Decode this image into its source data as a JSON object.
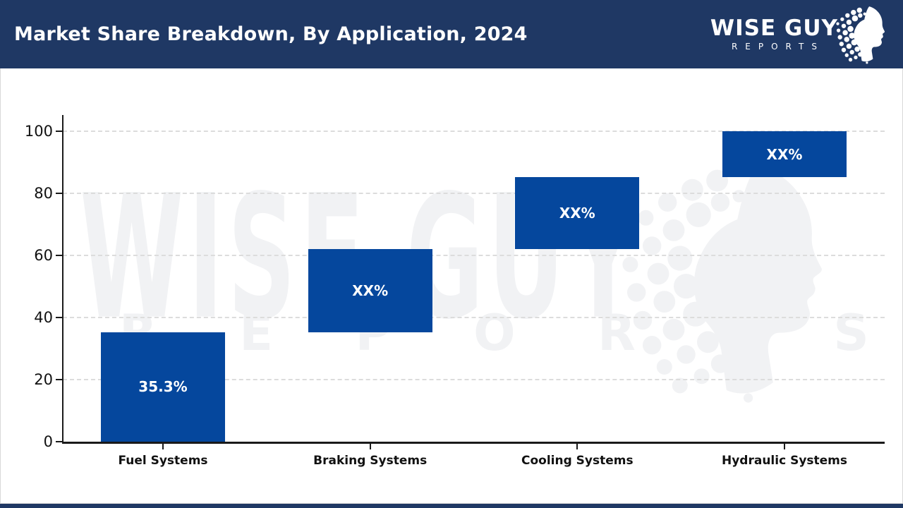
{
  "header": {
    "title": "Market Share Breakdown, By Application, 2024",
    "bg_color": "#1f3864",
    "logo": {
      "line1": "WISE GUY",
      "line2": "REPORTS"
    }
  },
  "watermark": {
    "line1": "WISE GUY",
    "line2": "R E P O R T S",
    "color": "#f1f2f4"
  },
  "chart_data": {
    "type": "bar",
    "subtype": "waterfall",
    "title": "Market Share Breakdown, By Application, 2024",
    "categories": [
      "Fuel Systems",
      "Braking Systems",
      "Cooling Systems",
      "Hydraulic Systems"
    ],
    "segments": [
      {
        "category": "Fuel Systems",
        "start": 0,
        "end": 35.3,
        "value": 35.3,
        "label": "35.3%"
      },
      {
        "category": "Braking Systems",
        "start": 35.3,
        "end": 62.0,
        "value": 26.7,
        "label": "XX%"
      },
      {
        "category": "Cooling Systems",
        "start": 62.0,
        "end": 85.2,
        "value": 23.2,
        "label": "XX%"
      },
      {
        "category": "Hydraulic Systems",
        "start": 85.2,
        "end": 100,
        "value": 14.8,
        "label": "XX%"
      }
    ],
    "ylim": [
      0,
      100
    ],
    "yticks": [
      0,
      20,
      40,
      60,
      80,
      100
    ],
    "xlabel": "",
    "ylabel": "",
    "grid": "horizontal-dashed",
    "legend": "none",
    "bar_color": "#05479d",
    "label_color": "#ffffff"
  },
  "footer": {
    "bg_color": "#1f3864"
  }
}
